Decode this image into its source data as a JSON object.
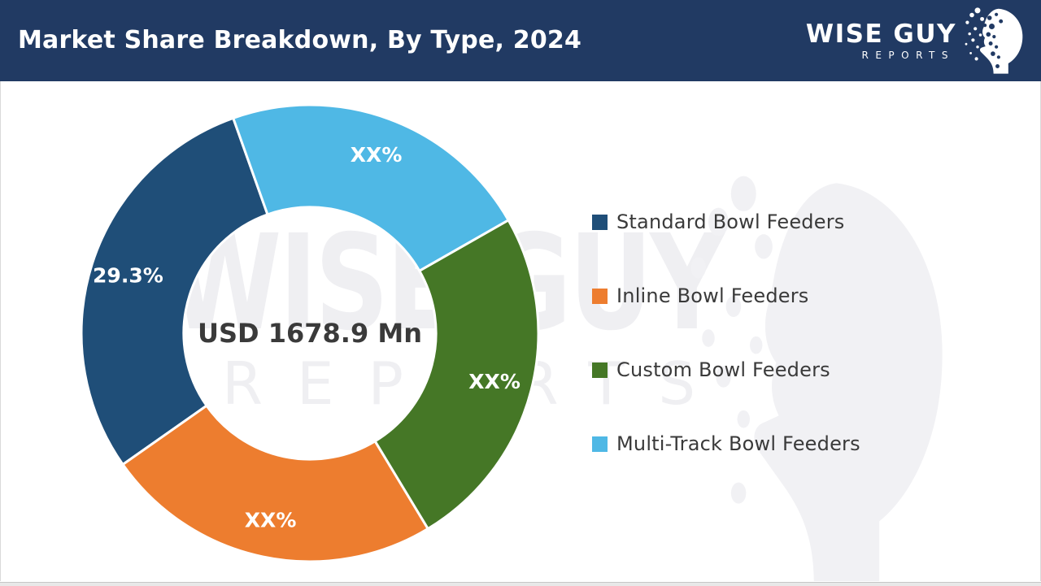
{
  "header": {
    "title": "Market Share Breakdown, By Type, 2024",
    "logo": {
      "line1": "WISE GUY",
      "line2": "REPORTS"
    }
  },
  "watermark": {
    "word": "WISE GUY",
    "reports": "REPORTS"
  },
  "chart_data": {
    "type": "pie",
    "subtype": "donut",
    "title": "Market Share Breakdown, By Type, 2024",
    "center_label": "USD 1678.9 Mn",
    "categories": [
      "Standard Bowl Feeders",
      "Inline Bowl Feeders",
      "Custom Bowl Feeders",
      "Multi-Track Bowl Feeders"
    ],
    "values": [
      29.3,
      23.9,
      24.6,
      22.2
    ],
    "slice_labels": [
      "29.3%",
      "XX%",
      "XX%",
      "XX%"
    ],
    "colors": [
      "#1F4E78",
      "#ED7D2F",
      "#457726",
      "#4FB8E5"
    ],
    "start_angle_deg": 109.6,
    "direction": "counterclockwise",
    "inner_radius_ratio": 0.552,
    "label_radius_ratio": 0.835,
    "legend_position": "right",
    "gridlines": "off"
  },
  "colors": {
    "header_bg": "#213A63",
    "center_text": "#3A3A3A",
    "legend_text": "#3A3A3A",
    "watermark": "#EFEFF2"
  }
}
